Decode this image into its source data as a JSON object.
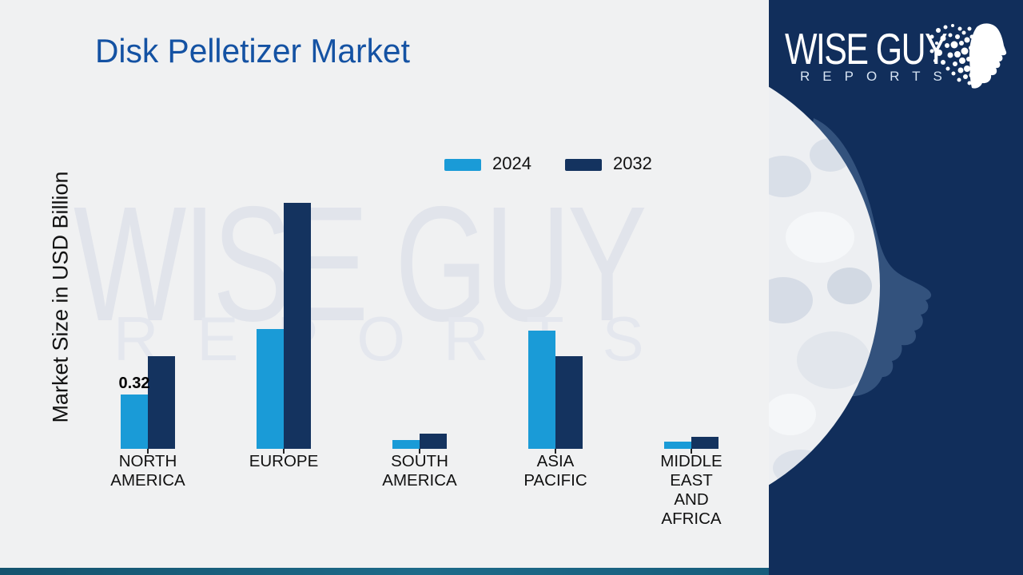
{
  "title": "Disk Pelletizer Market",
  "ylabel": "Market Size in USD Billion",
  "watermark": {
    "line1": "WISE GUY",
    "line2": "REPORTS"
  },
  "logo": {
    "brand_top": "WISE GUY",
    "brand_bottom": "REPORTS"
  },
  "colors": {
    "background": "#f0f1f2",
    "title_blue": "#1452a3",
    "bar_2024": "#1a9bd7",
    "bar_2032": "#14335f",
    "panel_navy": "#112e5b",
    "face_blue": "#33527d",
    "watermark_gray": "#e1e4eb",
    "bottom_strip_teal": "#1d6a89"
  },
  "legend": {
    "items": [
      {
        "label": "2024",
        "color": "#1a9bd7"
      },
      {
        "label": "2032",
        "color": "#14335f"
      }
    ]
  },
  "chart_data": {
    "type": "bar",
    "title": "Disk Pelletizer Market",
    "ylabel": "Market Size in USD Billion",
    "xlabel": "",
    "ylim": [
      0,
      1.5
    ],
    "grid": false,
    "legend_position": "top-center",
    "categories": [
      "NORTH AMERICA",
      "EUROPE",
      "SOUTH AMERICA",
      "ASIA PACIFIC",
      "MIDDLE EAST AND AFRICA"
    ],
    "category_lines": [
      [
        "NORTH",
        "AMERICA"
      ],
      [
        "EUROPE"
      ],
      [
        "SOUTH",
        "AMERICA"
      ],
      [
        "ASIA",
        "PACIFIC"
      ],
      [
        "MIDDLE",
        "EAST",
        "AND",
        "AFRICA"
      ]
    ],
    "series": [
      {
        "name": "2024",
        "color": "#1a9bd7",
        "values": [
          0.32,
          0.7,
          0.05,
          0.69,
          0.04
        ]
      },
      {
        "name": "2032",
        "color": "#14335f",
        "values": [
          0.54,
          1.44,
          0.09,
          0.54,
          0.07
        ]
      }
    ],
    "annotations": [
      {
        "series_index": 0,
        "category_index": 0,
        "text": "0.32"
      }
    ]
  }
}
